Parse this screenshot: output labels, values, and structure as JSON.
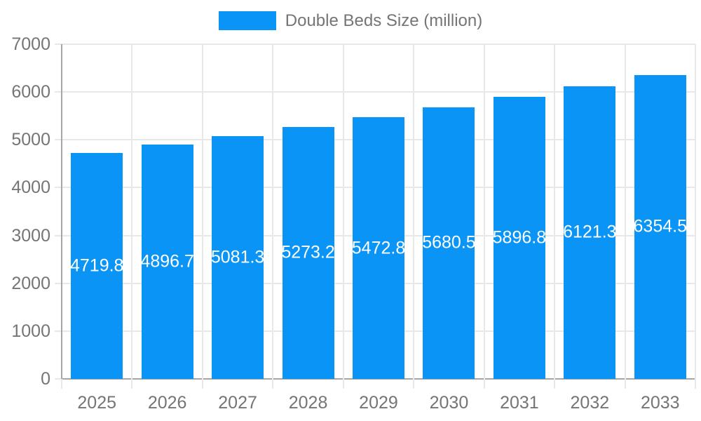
{
  "chart_data": {
    "type": "bar",
    "title": "",
    "legend": {
      "label": "Double Beds Size (million)",
      "position": "top"
    },
    "categories": [
      "2025",
      "2026",
      "2027",
      "2028",
      "2029",
      "2030",
      "2031",
      "2032",
      "2033"
    ],
    "series": [
      {
        "name": "Double Beds Size (million)",
        "values": [
          4719.8,
          4896.7,
          5081.3,
          5273.2,
          5472.8,
          5680.5,
          5896.8,
          6121.3,
          6354.5
        ]
      }
    ],
    "data_labels": [
      "4719.8",
      "4896.7",
      "5081.3",
      "5273.2",
      "5472.8",
      "5680.5",
      "5896.8",
      "6121.3",
      "6354.5"
    ],
    "xlabel": "",
    "ylabel": "",
    "ylim": [
      0,
      7000
    ],
    "yticks": [
      0,
      1000,
      2000,
      3000,
      4000,
      5000,
      6000,
      7000
    ],
    "grid": true,
    "colors": {
      "bar": "#0a94f5",
      "data_label": "#ffffff",
      "axis_text": "#757575",
      "gridline": "#e8e8e8",
      "axis_line": "#a6a6a6",
      "background": "#ffffff"
    }
  }
}
